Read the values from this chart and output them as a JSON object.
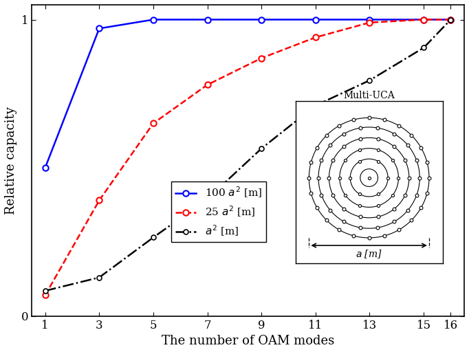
{
  "blue_x": [
    1,
    3,
    5,
    7,
    9,
    11,
    13,
    15,
    16
  ],
  "blue_y": [
    0.5,
    0.97,
    1.0,
    1.0,
    1.0,
    1.0,
    1.0,
    1.0,
    1.0
  ],
  "red_x": [
    1,
    3,
    5,
    7,
    9,
    11,
    13,
    15,
    16
  ],
  "red_y": [
    0.07,
    0.39,
    0.65,
    0.78,
    0.87,
    0.94,
    0.99,
    1.0,
    1.0
  ],
  "black_x": [
    1,
    3,
    5,
    7,
    9,
    11,
    13,
    15,
    16
  ],
  "black_y": [
    0.085,
    0.13,
    0.265,
    0.395,
    0.565,
    0.71,
    0.795,
    0.905,
    1.0
  ],
  "xlabel": "The number of OAM modes",
  "ylabel": "Relative capacity",
  "xticks": [
    1,
    3,
    5,
    7,
    9,
    11,
    13,
    15,
    16
  ],
  "yticks": [
    0,
    1
  ],
  "xlim": [
    0.5,
    16.5
  ],
  "ylim": [
    0,
    1.05
  ],
  "blue_label": "100 $a^2$ [m]",
  "red_label": "25 $a^2$ [m]",
  "black_label": "$a^2$ [m]",
  "inset_title": "Multi-UCA",
  "inset_label": "$a$ [m]",
  "blue_color": "#0000FF",
  "red_color": "#FF0000",
  "black_color": "#000000",
  "background": "#FFFFFF",
  "radii": [
    0.15,
    0.32,
    0.5,
    0.68,
    0.86,
    1.02
  ],
  "n_dots": [
    1,
    6,
    10,
    14,
    18,
    24
  ]
}
